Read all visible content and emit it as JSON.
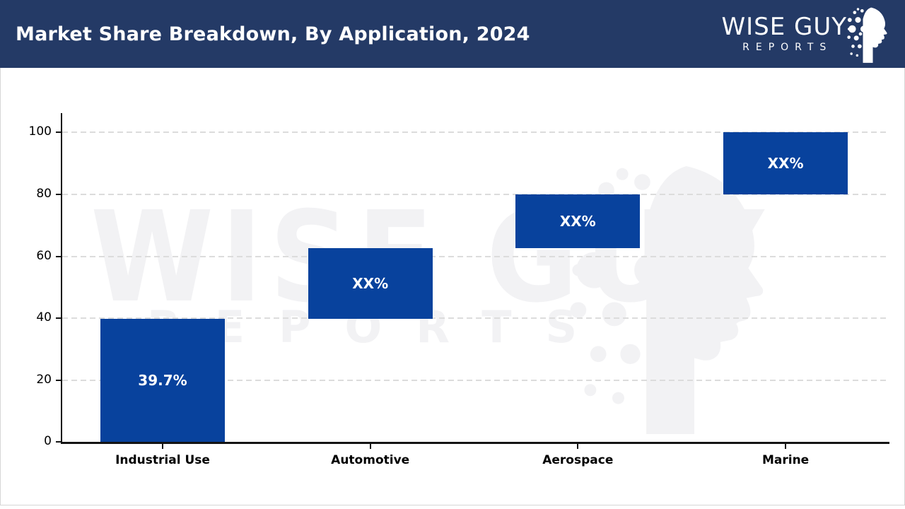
{
  "header": {
    "title": "Market Share Breakdown, By Application, 2024",
    "background_color": "#243a66",
    "logo": {
      "line1": "WISE GUY",
      "line2": "REPORTS",
      "head_icon": "dotted-head-profile-icon"
    }
  },
  "watermark": {
    "line1": "WISE GUY",
    "line2": "REPORTS",
    "head_icon": "dotted-head-profile-icon",
    "color": "#f2f2f4"
  },
  "chart_data": {
    "type": "bar",
    "variant": "waterfall",
    "title": "Market Share Breakdown, By Application, 2024",
    "categories": [
      "Industrial Use",
      "Automotive",
      "Aerospace",
      "Marine"
    ],
    "series": [
      {
        "name": "Market Share",
        "segments": [
          {
            "category": "Industrial Use",
            "start": 0,
            "end": 39.7,
            "label": "39.7%"
          },
          {
            "category": "Automotive",
            "start": 39.7,
            "end": 62.6,
            "label": "XX%"
          },
          {
            "category": "Aerospace",
            "start": 62.6,
            "end": 80.0,
            "label": "XX%"
          },
          {
            "category": "Marine",
            "start": 80.0,
            "end": 100.0,
            "label": "XX%"
          }
        ]
      }
    ],
    "xlabel": "",
    "ylabel": "",
    "ylim": [
      0,
      100
    ],
    "yticks": [
      0,
      20,
      40,
      60,
      80,
      100
    ],
    "grid": "horizontal-dashed",
    "legend": "none",
    "bar_color": "#08429d",
    "bar_label_color": "#ffffff",
    "axis_color": "#141414",
    "gridline_color": "#dcdcdc"
  }
}
